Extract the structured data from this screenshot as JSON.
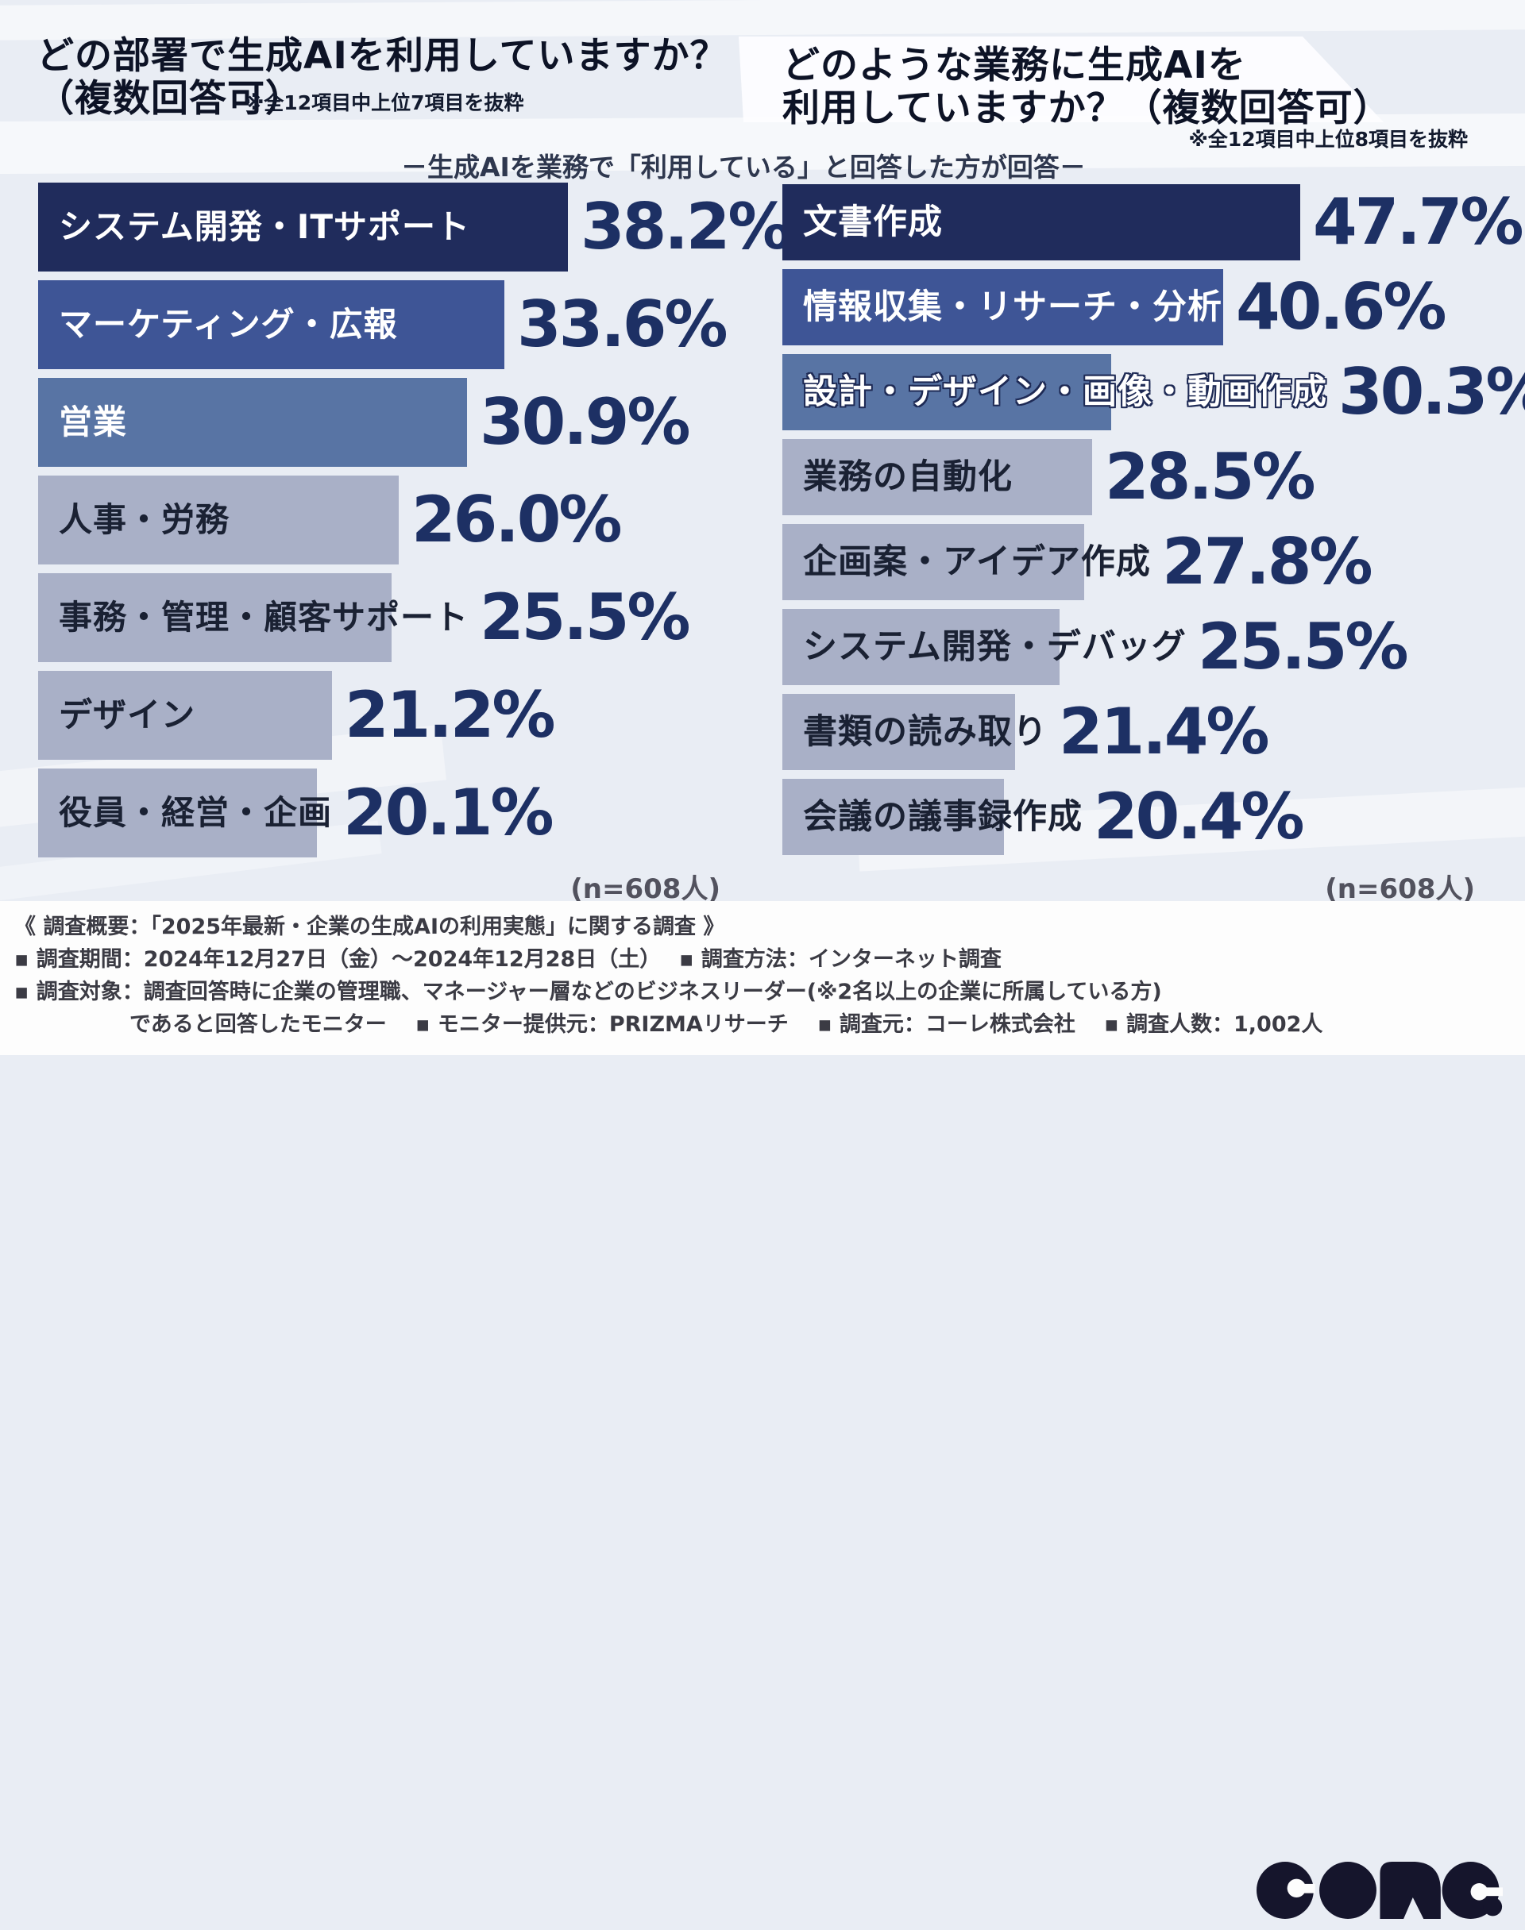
{
  "chart_data": [
    {
      "type": "bar",
      "orientation": "horizontal",
      "title": "どの部署で生成AIを利用していますか？（複数回答可）",
      "note": "※全12項目中上位7項目を抜粋",
      "sample": "(n=608人)",
      "unit": "%",
      "categories": [
        "システム開発・ITサポート",
        "マーケティング・広報",
        "営業",
        "人事・労務",
        "事務・管理・顧客サポート",
        "デザイン",
        "役員・経営・企画"
      ],
      "values": [
        38.2,
        33.6,
        30.9,
        26.0,
        25.5,
        21.2,
        20.1
      ],
      "value_labels": [
        "38.2%",
        "33.6%",
        "30.9%",
        "26.0%",
        "25.5%",
        "21.2%",
        "20.1%"
      ],
      "xlim": [
        0,
        50
      ],
      "grid": false,
      "legend": "none"
    },
    {
      "type": "bar",
      "orientation": "horizontal",
      "title": "どのような業務に生成AIを利用していますか？（複数回答可）",
      "note": "※全12項目中上位8項目を抜粋",
      "sample": "(n=608人)",
      "unit": "%",
      "categories": [
        "文書作成",
        "情報収集・リサーチ・分析",
        "設計・デザイン・画像・動画作成",
        "業務の自動化",
        "企画案・アイデア作成",
        "システム開発・デバッグ",
        "書類の読み取り",
        "会議の議事録作成"
      ],
      "values": [
        47.7,
        40.6,
        30.3,
        28.5,
        27.8,
        25.5,
        21.4,
        20.4
      ],
      "value_labels": [
        "47.7%",
        "40.6%",
        "30.3%",
        "28.5%",
        "27.8%",
        "25.5%",
        "21.4%",
        "20.4%"
      ],
      "xlim": [
        0,
        52
      ],
      "grid": false,
      "legend": "none"
    }
  ],
  "left_chart": {
    "title_line1": "どの部署で生成AIを利用していますか？",
    "title_line2": "（複数回答可）",
    "note": "※全12項目中上位7項目を抜粋",
    "n_label": "(n=608人)"
  },
  "right_chart": {
    "title_line1": "どのような業務に生成AIを",
    "title_line2": "利用していますか？（複数回答可）",
    "note": "※全12項目中上位8項目を抜粋",
    "n_label": "(n=608人)"
  },
  "middle_note": "－生成AIを業務で「利用している」と回答した方が回答－",
  "colors": {
    "background": "#e9edf4",
    "bar_rank1": "#202c5c",
    "bar_rank2": "#3e5596",
    "bar_rank3": "#5874a4",
    "bar_other": "#a9b0c7",
    "bar_text_light": "#ffffff",
    "bar_text_dark": "#1a2133",
    "value_text": "#1d3064",
    "footer_background": "#fdfdfd",
    "logo": "#15152c"
  },
  "footer": {
    "line1": "《 調査概要：「2025年最新・企業の生成AIの利用実態」に関する調査 》",
    "line2": "▪ 調査期間：2024年12月27日（金）～2024年12月28日（土）　 ▪ 調査方法：インターネット調査",
    "line3": "▪ 調査対象：調査回答時に企業の管理職、マネージャー層などのビジネスリーダー(※2名以上の企業に所属している方)",
    "line4": "であると回答したモニター　 ▪ モニター提供元：PRIZMAリサーチ　 ▪ 調査元：コーレ株式会社　 ▪ 調査人数：1,002人",
    "logo_text": "CORE"
  }
}
